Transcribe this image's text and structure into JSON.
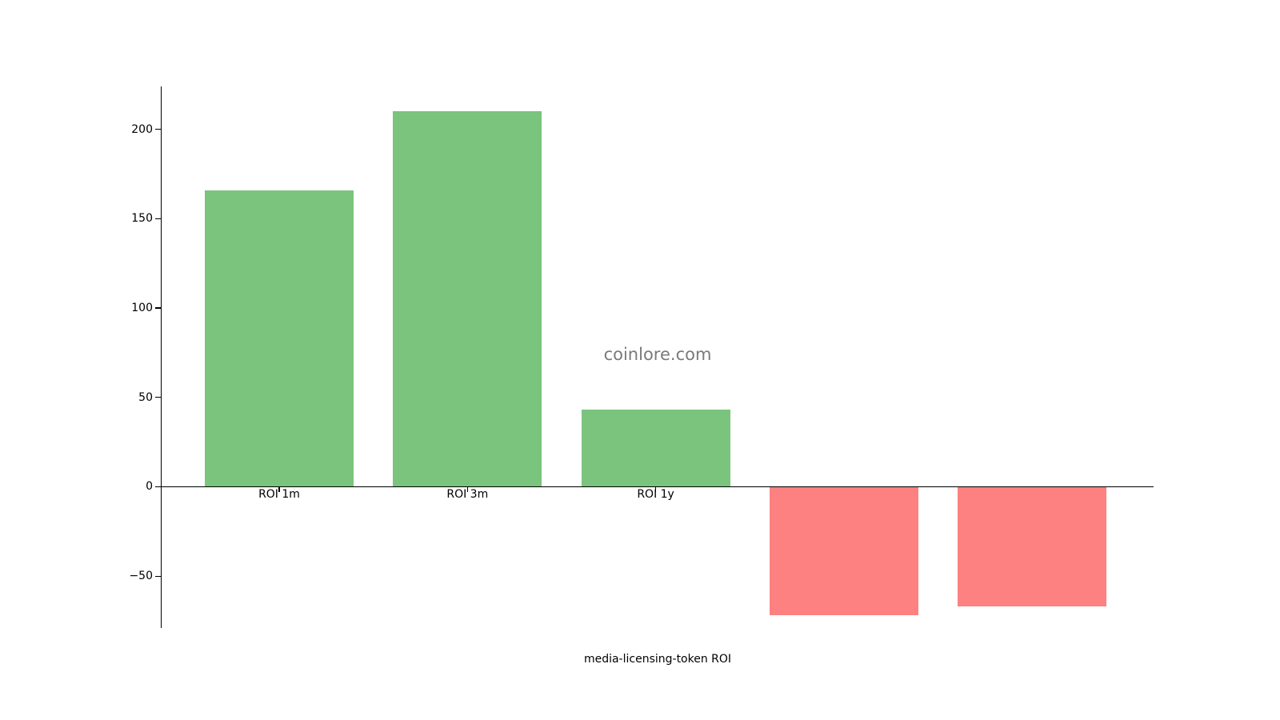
{
  "watermark": "coinlore.com",
  "chart_data": {
    "type": "bar",
    "title": "",
    "xlabel": "media-licensing-token ROI",
    "ylabel": "",
    "categories": [
      "ROI 1m",
      "ROI 3m",
      "ROI 1y",
      "",
      ""
    ],
    "values": [
      166,
      210,
      43,
      -72,
      -67
    ],
    "bar_colors": [
      "#7ac47e",
      "#7ac47e",
      "#7ac47e",
      "#fe8181",
      "#fe8181"
    ],
    "positive_color": "#7ac47e",
    "negative_color": "#fe8181",
    "yticks": [
      -50,
      0,
      50,
      100,
      150,
      200
    ],
    "ylim": [
      -79,
      224
    ],
    "grid": false,
    "legend": null,
    "axis_color": "#000000",
    "watermark_color": "#7a7a7a",
    "annotations": [
      "coinlore.com"
    ]
  }
}
